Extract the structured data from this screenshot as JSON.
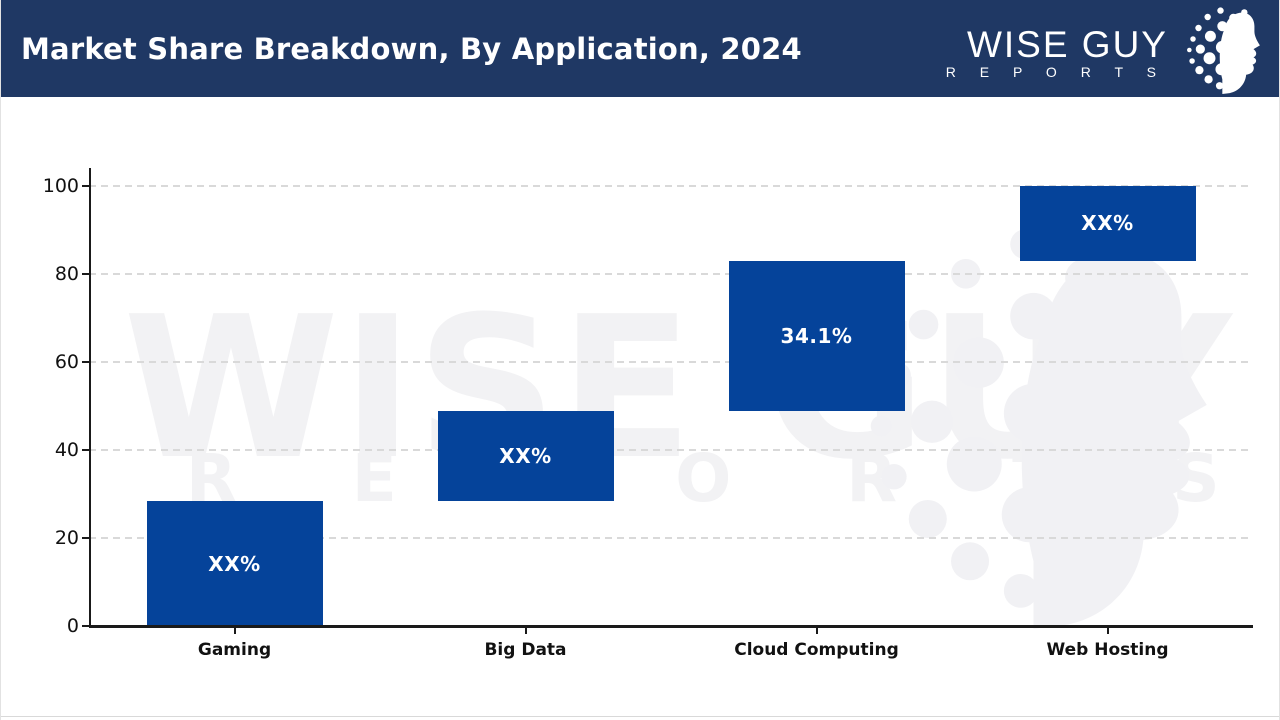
{
  "header": {
    "title": "Market Share Breakdown, By Application, 2024",
    "bg_color": "#1f3864",
    "logo": {
      "line1": "WISE GUY",
      "line2": "R E P O R T S"
    }
  },
  "watermark": {
    "line1": "WISE GUY",
    "line2": "R E P O R T S"
  },
  "chart_data": {
    "type": "bar",
    "subtype": "waterfall",
    "title": "Market Share Breakdown, By Application, 2024",
    "categories": [
      "Gaming",
      "Big Data",
      "Cloud Computing",
      "Web Hosting"
    ],
    "segments": [
      {
        "category": "Gaming",
        "start": 0,
        "end": 28.4,
        "increment": 28.4,
        "value_label": "XX%"
      },
      {
        "category": "Big Data",
        "start": 28.4,
        "end": 48.9,
        "increment": 20.5,
        "value_label": "XX%"
      },
      {
        "category": "Cloud Computing",
        "start": 48.9,
        "end": 83.0,
        "increment": 34.1,
        "value_label": "34.1%"
      },
      {
        "category": "Web Hosting",
        "start": 83.0,
        "end": 100.0,
        "increment": 17.0,
        "value_label": "XX%"
      }
    ],
    "xlabel": "",
    "ylabel": "",
    "ylim": [
      0,
      100
    ],
    "yticks": [
      0,
      20,
      40,
      60,
      80,
      100
    ],
    "grid": "horizontal-dashed",
    "legend": false,
    "colors": {
      "bar": "#05439a",
      "bar_label": "#ffffff",
      "grid": "#d9d9d9",
      "axis": "#1a1a1a",
      "header_bg": "#1f3864",
      "watermark": "#f2f2f4"
    }
  }
}
